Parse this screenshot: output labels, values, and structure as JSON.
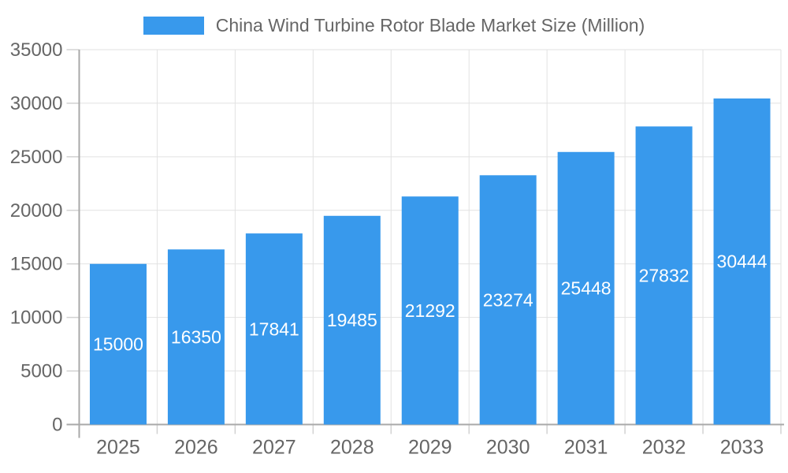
{
  "legend": {
    "label": "China Wind Turbine Rotor Blade Market Size (Million)"
  },
  "colors": {
    "bar": "#3899ec",
    "grid": "#e2e2e2",
    "axis": "#a9a9a9",
    "tick": "#d2d2d2",
    "axis_text": "#666666",
    "bar_label_text": "#ffffff",
    "background": "#ffffff"
  },
  "chart_data": {
    "type": "bar",
    "title": "China Wind Turbine Rotor Blade Market Size (Million)",
    "categories": [
      "2025",
      "2026",
      "2027",
      "2028",
      "2029",
      "2030",
      "2031",
      "2032",
      "2033"
    ],
    "values": [
      15000,
      16350,
      17841,
      19485,
      21292,
      23274,
      25448,
      27832,
      30444
    ],
    "series": [
      {
        "name": "China Wind Turbine Rotor Blade Market Size (Million)",
        "values": [
          15000,
          16350,
          17841,
          19485,
          21292,
          23274,
          25448,
          27832,
          30444
        ]
      }
    ],
    "xlabel": "",
    "ylabel": "",
    "ylim": [
      0,
      35000
    ],
    "ytick_step": 5000,
    "yticks": [
      0,
      5000,
      10000,
      15000,
      20000,
      25000,
      30000,
      35000
    ],
    "grid": true,
    "legend_position": "top",
    "bar_label_position": "center"
  }
}
